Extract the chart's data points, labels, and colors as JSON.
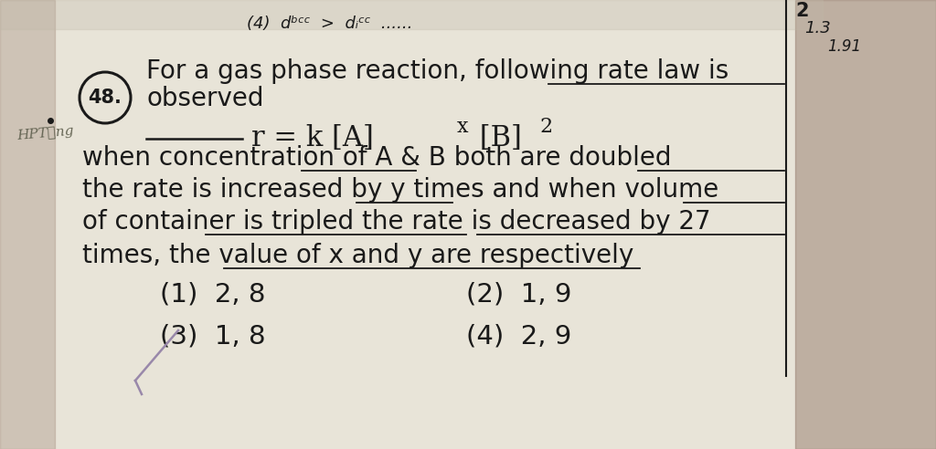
{
  "bg_color": "#e8e4d8",
  "text_color": "#1a1a1a",
  "top_label": "(4)  dᵇᶜᶜ  >  dᵢᶜᶜ  ......",
  "corner_num1": "2",
  "corner_note": "1.3",
  "corner_note2": "1.91",
  "q_num": "48.",
  "line1": "For a gas phase reaction, following rate law is",
  "line2": "observed",
  "rl_prefix": "r = k [A]",
  "rl_sup1": "x",
  "rl_mid": " [B]",
  "rl_sup2": "2",
  "line3": "when concentration of A & B both are doubled",
  "line4": "the rate is increased by y times and when volume",
  "line5": "of container is tripled the rate is decreased by 27",
  "line6": "times, the value of x and y are respectively",
  "opt1": "(1)  2, 8",
  "opt2": "(2)  1, 9",
  "opt3": "(3)  1, 8",
  "opt4": "(4)  2, 9",
  "handwriting": "HPTℓng",
  "font_size_main": 20,
  "font_size_small": 14
}
